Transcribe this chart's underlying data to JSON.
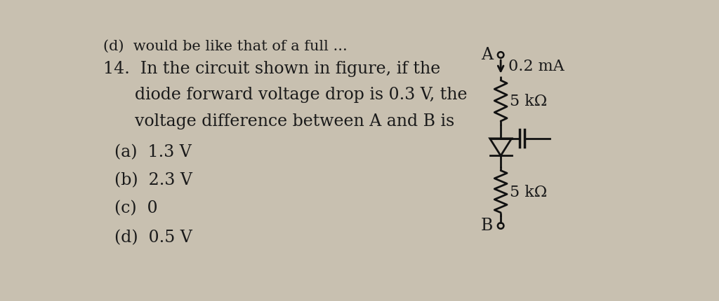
{
  "background_color": "#c8c0b0",
  "top_text": "(d)  would be like that of a full ...",
  "question_line1": "14.  In the circuit shown in figure, if the",
  "question_line2": "      diode forward voltage drop is 0.3 V, the",
  "question_line3": "      voltage difference between A and B is",
  "options": [
    "(a)  1.3 V",
    "(b)  2.3 V",
    "(c)  0",
    "(d)  0.5 V"
  ],
  "label_A": "A",
  "label_B": "B",
  "label_current": "0.2 mA",
  "label_R1": "5 kΩ",
  "label_R2": "5 kΩ",
  "text_color": "#1a1a1a",
  "font_size": 17
}
